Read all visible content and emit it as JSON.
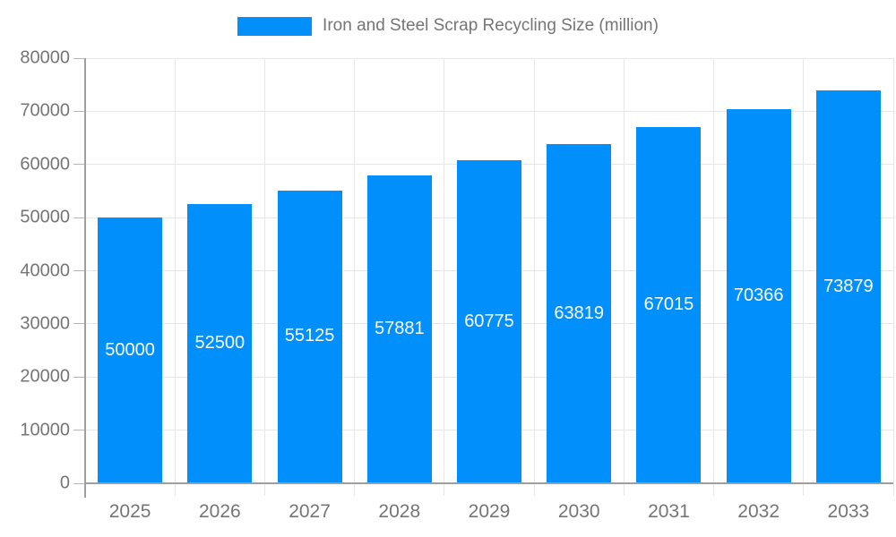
{
  "chart_data": {
    "type": "bar",
    "title": "Iron and Steel Scrap Recycling Size (million)",
    "categories": [
      "2025",
      "2026",
      "2027",
      "2028",
      "2029",
      "2030",
      "2031",
      "2032",
      "2033"
    ],
    "values": [
      50000,
      52500,
      55125,
      57881,
      60775,
      63819,
      67015,
      70366,
      73879
    ],
    "xlabel": "",
    "ylabel": "",
    "ylim": [
      0,
      80000
    ],
    "ytick_step": 10000,
    "grid": true,
    "legend_position": "top",
    "colors": {
      "bar": "#008FFB",
      "grid_line": "#e7e7e7",
      "axis_line": "#9e9e9e",
      "tick_label": "#757575",
      "value_label": "#ffffff"
    }
  }
}
